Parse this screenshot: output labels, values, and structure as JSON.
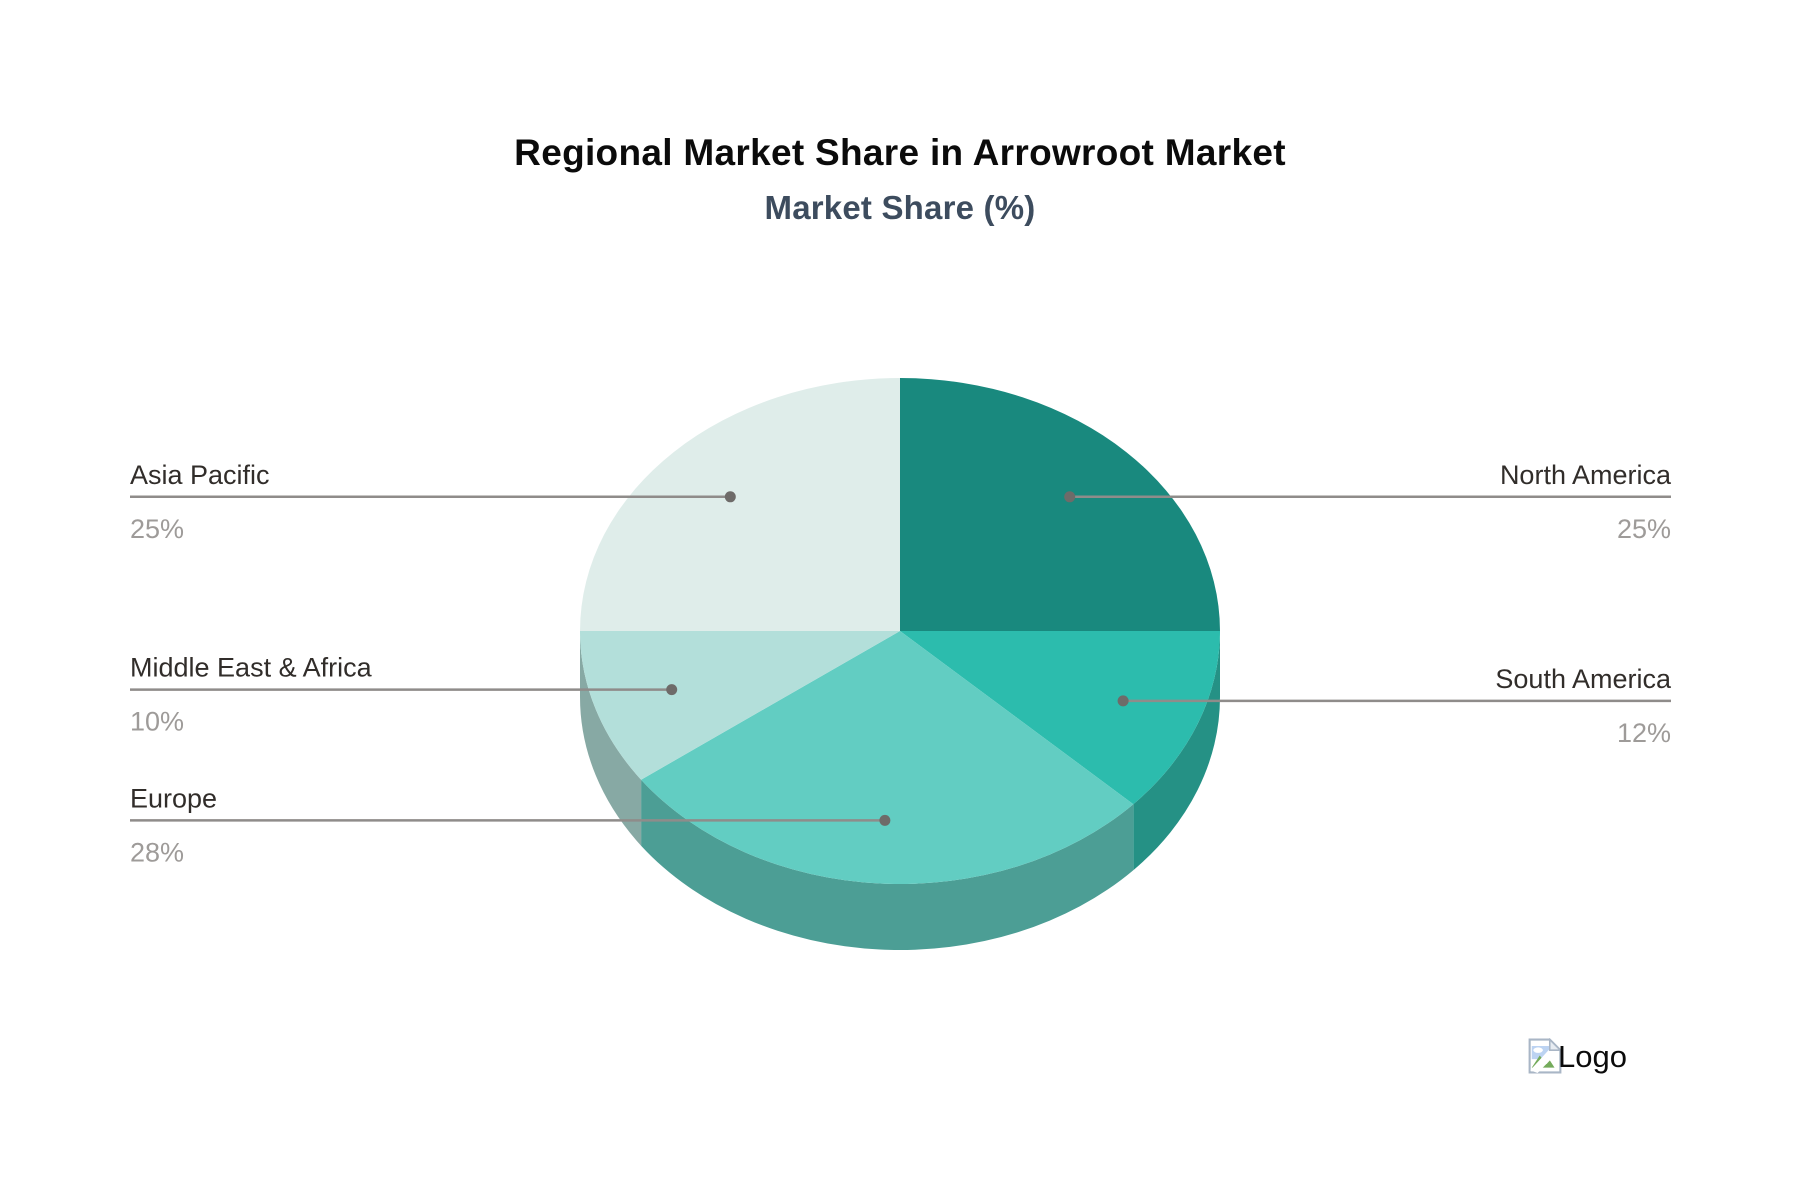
{
  "page": {
    "title": "Regional Market Share in Arrowroot Market",
    "subtitle": "Market Share (%)",
    "logo_text": "Logo"
  },
  "chart_data": {
    "type": "pie",
    "title": "Regional Market Share in Arrowroot Market",
    "subtitle": "Market Share (%)",
    "unit": "%",
    "style": "3d-pie",
    "layout": {
      "start_angle_deg": 0,
      "direction": "clockwise",
      "labels": "leader-lines",
      "legend": "none",
      "background": "#ffffff"
    },
    "slices": [
      {
        "label": "North America",
        "value": 25,
        "display": "25%",
        "side": "right",
        "color": "#19897E"
      },
      {
        "label": "South America",
        "value": 12,
        "display": "12%",
        "side": "right",
        "color": "#2CBCAD",
        "side_color": "#259185"
      },
      {
        "label": "Europe",
        "value": 28,
        "display": "28%",
        "side": "left",
        "color": "#62CDC2",
        "side_color": "#4C9E95"
      },
      {
        "label": "Middle East & Africa",
        "value": 10,
        "display": "10%",
        "side": "left",
        "color": "#B3DFDA",
        "side_color": "#87A9A4"
      },
      {
        "label": "Asia Pacific",
        "value": 25,
        "display": "25%",
        "side": "left",
        "color": "#DFEDEA"
      }
    ],
    "colors": {
      "label_text": "#312D2A",
      "percent_text": "#9E9B99",
      "leader_line": "#8F8C8A",
      "leader_dot": "#6E6B69",
      "title_text": "#0B0B0B",
      "subtitle_text": "#3D4C5E"
    }
  }
}
